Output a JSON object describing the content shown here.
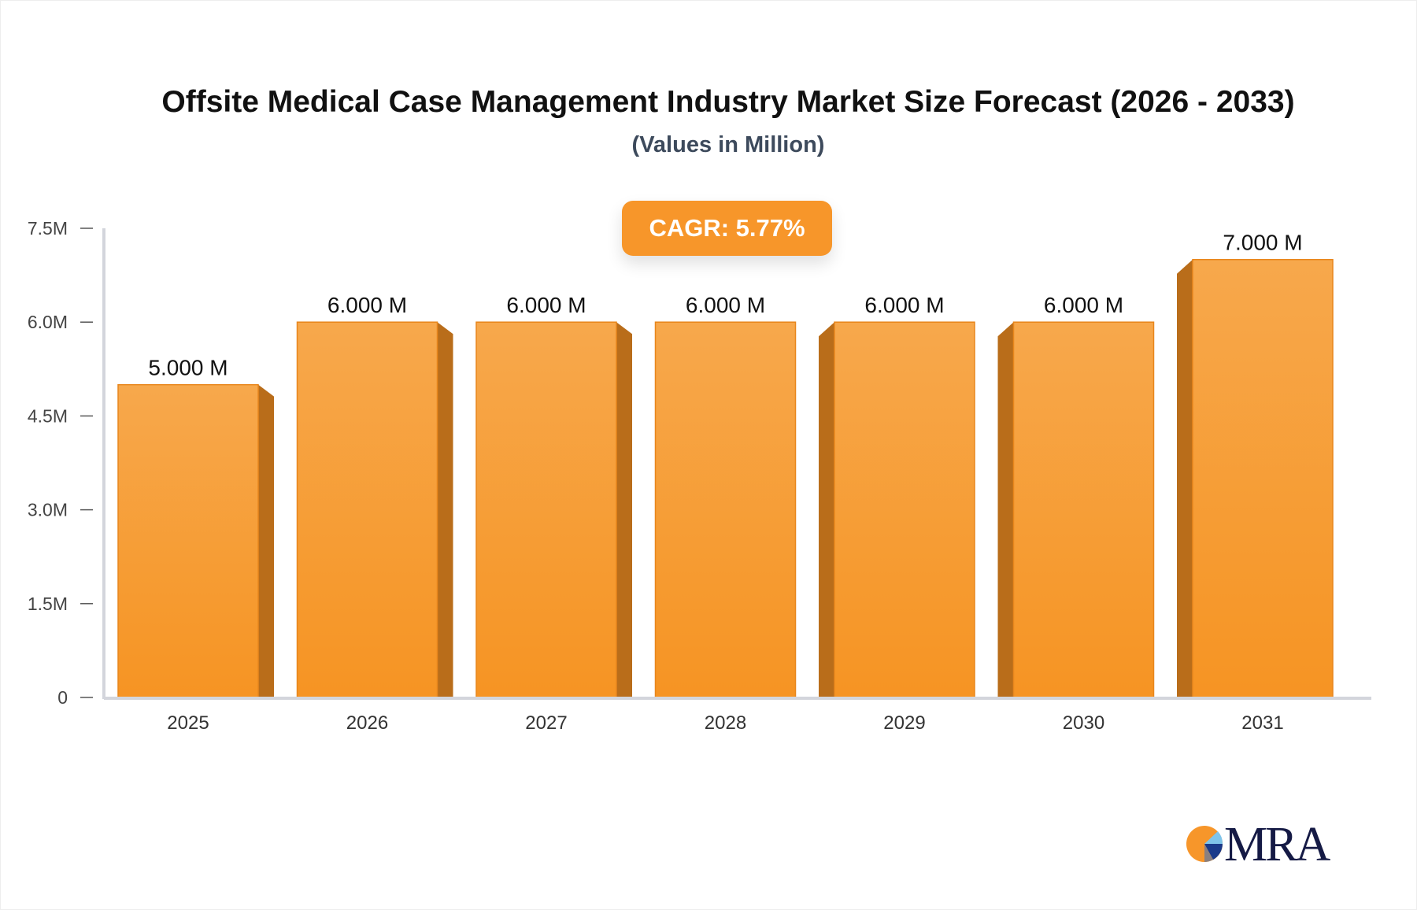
{
  "chart_data": {
    "type": "bar",
    "title": "Offsite Medical Case Management Industry Market Size Forecast (2026 - 2033)",
    "subtitle": "(Values in Million)",
    "categories": [
      "2025",
      "2026",
      "2027",
      "2028",
      "2029",
      "2030",
      "2031"
    ],
    "values": [
      5.0,
      6.0,
      6.0,
      6.0,
      6.0,
      6.0,
      7.0
    ],
    "data_labels": [
      "5.000 M",
      "6.000 M",
      "6.000 M",
      "6.000 M",
      "6.000 M",
      "6.000 M",
      "7.000 M"
    ],
    "y_ticks": [
      0,
      1.5,
      3.0,
      4.5,
      6.0,
      7.5
    ],
    "y_tick_labels": [
      "0",
      "1.5M",
      "3.0M",
      "4.5M",
      "6.0M",
      "7.5M"
    ],
    "ylim": [
      0,
      7.5
    ],
    "xlabel": "",
    "ylabel": "",
    "grid": false,
    "bar_color": "#f7962a",
    "bar_side_color": "#b96d1a",
    "annotation": "CAGR: 5.77%"
  },
  "logo": {
    "text": "MRA"
  }
}
